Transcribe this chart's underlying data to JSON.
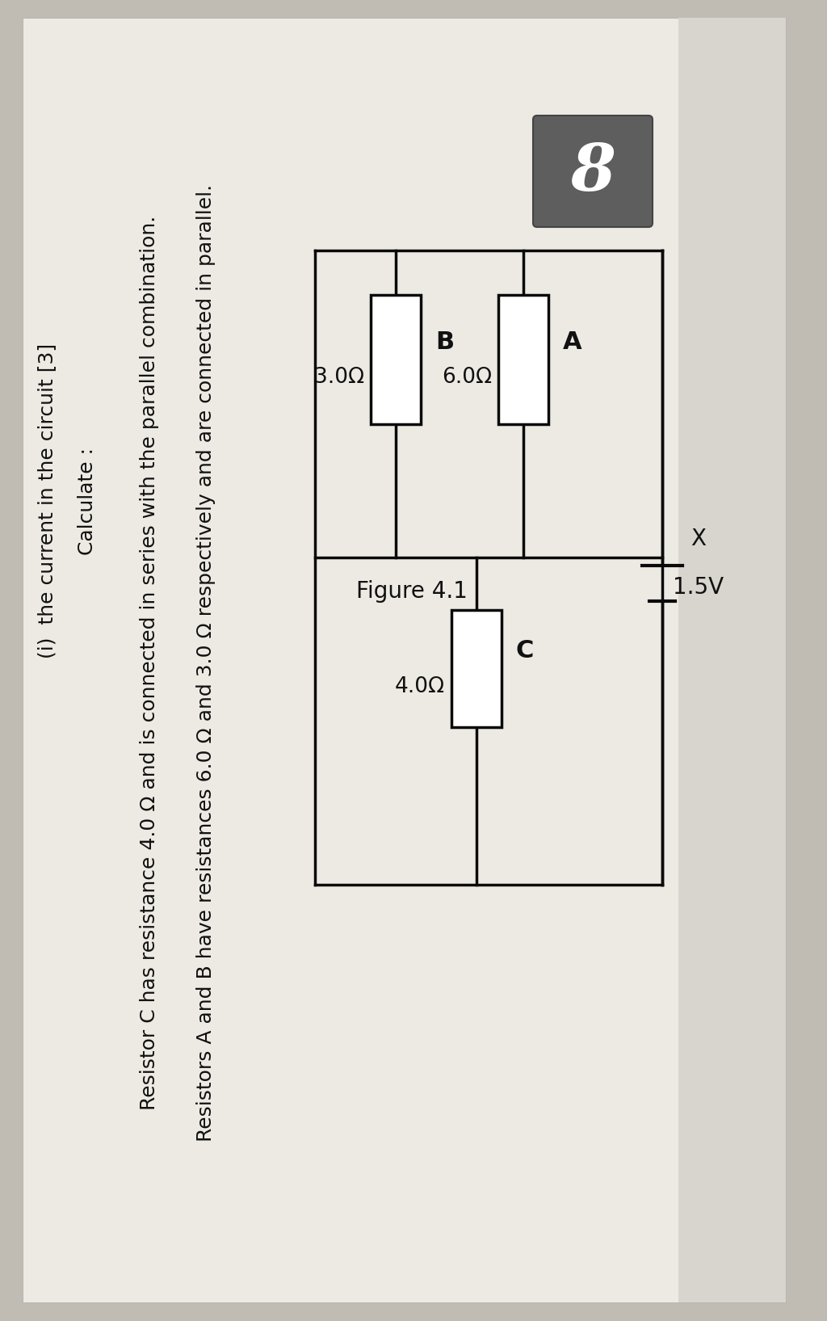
{
  "bg_color": "#c0bcb4",
  "page_color": "#edeae3",
  "fold_color": "#d8d5ce",
  "question_number": "8",
  "figure_label": "Figure 4.1",
  "battery_label": "X",
  "battery_voltage": "1.5V",
  "resistor_A_label": "A",
  "resistor_A_value": "6.0Ω",
  "resistor_B_label": "B",
  "resistor_B_value": "3.0Ω",
  "resistor_C_label": "C",
  "resistor_C_value": "4.0Ω",
  "text_line1": "Resistors A and B have resistances 6.0 Ω and 3.0 Ω respectively and are connected in parallel.",
  "text_line2": "Resistor C has resistance 4.0 Ω and is connected in series with the parallel combination.",
  "text_line3": "Calculate :",
  "text_line4": "(i)  the current in the circuit [3]",
  "line_color": "#0a0a0a",
  "font_color": "#111111",
  "circuit_lw": 2.5,
  "badge_color": "#5e5e5e"
}
